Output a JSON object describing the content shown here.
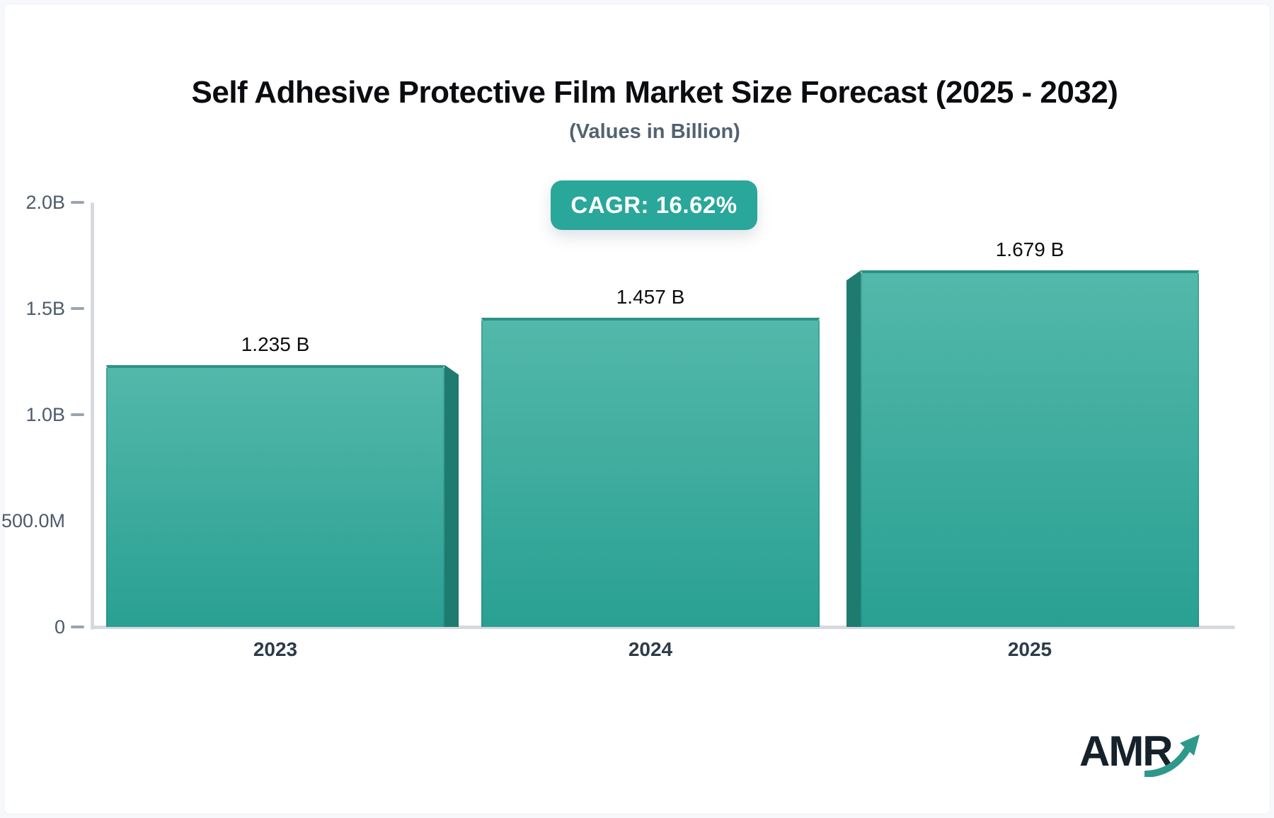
{
  "page": {
    "background": "#f7f8fb",
    "card_background": "#ffffff"
  },
  "header": {
    "title": "Self Adhesive Protective Film Market Size Forecast (2025 - 2032)",
    "subtitle": "(Values in Billion)"
  },
  "cagr_badge": {
    "label": "CAGR: 16.62%",
    "background": "#29a79a",
    "text_color": "#ffffff"
  },
  "chart_data": {
    "type": "bar",
    "title": "Self Adhesive Protective Film Market Size Forecast (2025 - 2032)",
    "subtitle": "(Values in Billion)",
    "cagr": "16.62%",
    "categories": [
      "2023",
      "2024",
      "2025"
    ],
    "values": [
      1.235,
      1.457,
      1.679
    ],
    "data_labels": [
      "1.235 B",
      "1.457 B",
      "1.679 B"
    ],
    "ylim": [
      0,
      2.0
    ],
    "yticks": [
      {
        "label": "2.0B",
        "value": 2.0,
        "dash": true
      },
      {
        "label": "1.5B",
        "value": 1.5,
        "dash": true
      },
      {
        "label": "1.0B",
        "value": 1.0,
        "dash": true
      },
      {
        "label": "500.0M",
        "value": 0.5,
        "dash": false
      },
      {
        "label": "0",
        "value": 0.0,
        "dash": true
      }
    ],
    "grid": false,
    "legend": false,
    "colors": {
      "bar_top": "#53b8aa",
      "bar_bottom": "#29a093",
      "bar_side": "#1e7b6f",
      "bar_top_edge": "#2d9285",
      "axis_line": "#d6d9e0",
      "tick": "#9aa4b1",
      "tick_label": "#4d5a6b",
      "category_label": "#2e3b4a",
      "value_label": "#0c0e10"
    }
  },
  "logo": {
    "text": "AMR",
    "text_color": "#15212b",
    "arrow_color": "#2e988b"
  }
}
